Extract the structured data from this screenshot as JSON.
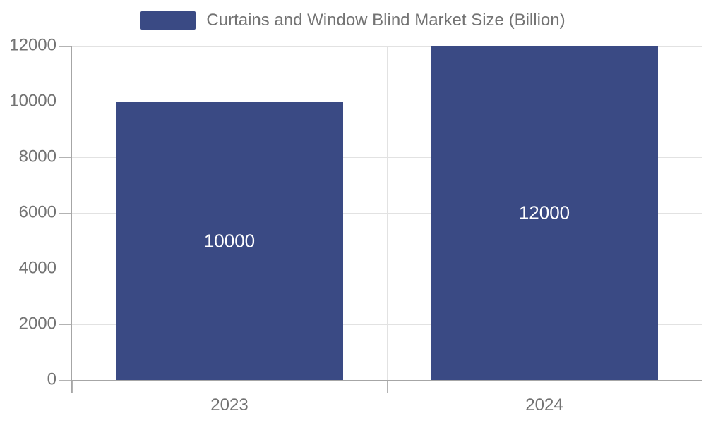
{
  "chart_data": {
    "type": "bar",
    "title": "Curtains and Window Blind Market Size (Billion)",
    "categories": [
      "2023",
      "2024"
    ],
    "series": [
      {
        "name": "Curtains and Window Blind Market Size (Billion)",
        "values": [
          10000,
          12000
        ]
      }
    ],
    "data_labels": [
      "10000",
      "12000"
    ],
    "xlabel": "",
    "ylabel": "",
    "ylim": [
      0,
      12000
    ],
    "ytick_step": 2000,
    "ytick_labels": [
      "0",
      "2000",
      "4000",
      "6000",
      "8000",
      "10000",
      "12000"
    ],
    "legend_position": "top",
    "grid": true,
    "colors": {
      "bar": "#3A4A84",
      "axis": "#A6A6A6",
      "tick": "#B3B3B3",
      "gridline": "#E2E2E2",
      "text": "#737373",
      "data_label": "#FFFFFF",
      "background": "#FFFFFF"
    }
  }
}
